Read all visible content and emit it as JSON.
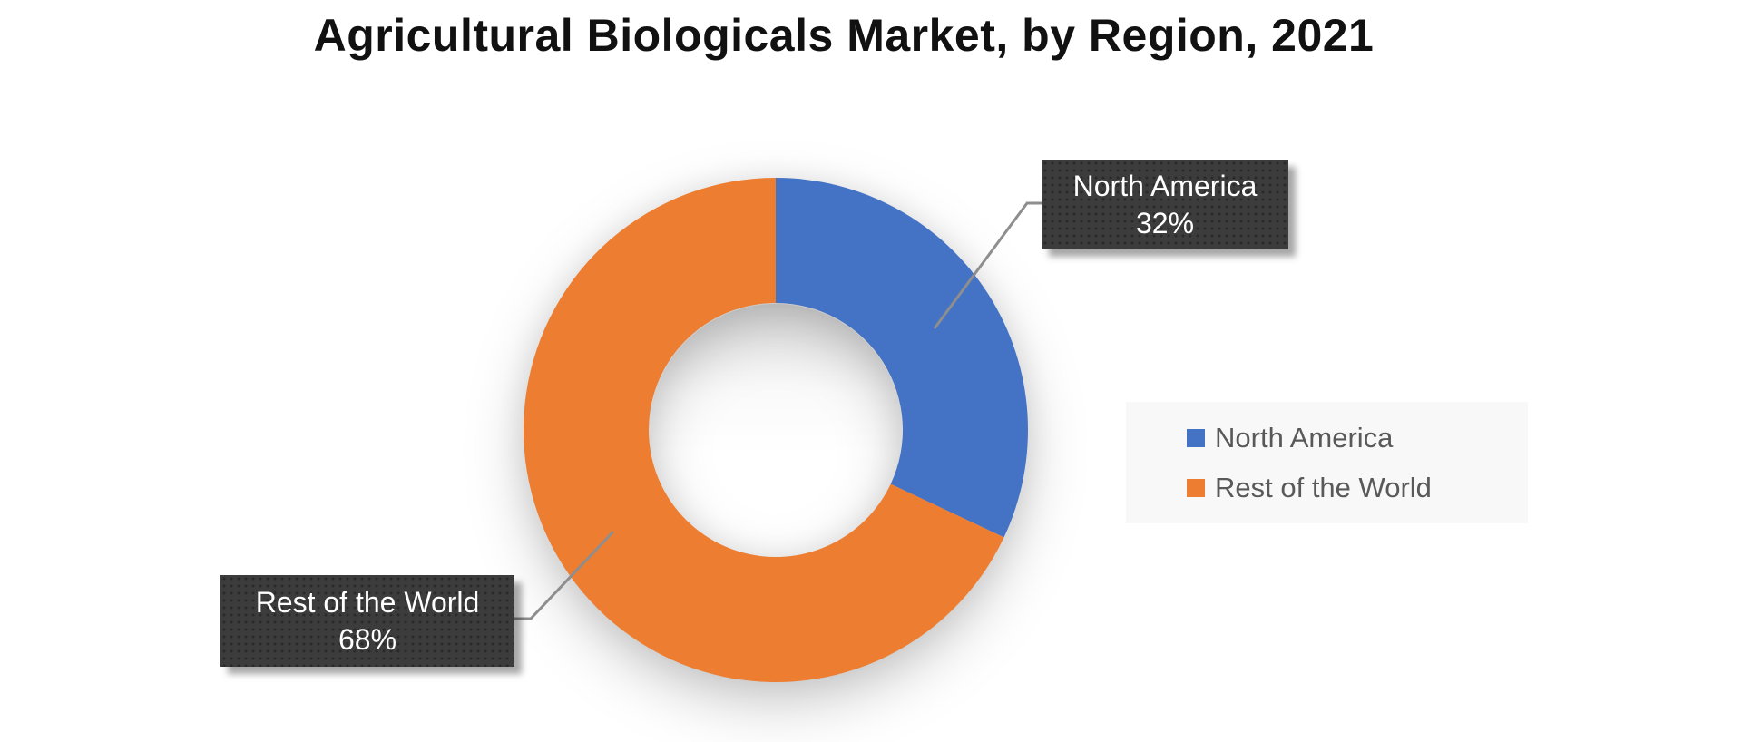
{
  "title": "Agricultural Biologicals Market, by Region, 2021",
  "chart_data": {
    "type": "pie",
    "subtype": "donut",
    "title": "Agricultural Biologicals Market, by Region, 2021",
    "categories": [
      "North America",
      "Rest of the World"
    ],
    "values": [
      32,
      68
    ],
    "unit": "%",
    "colors": [
      "#4472C4",
      "#ED7D31"
    ],
    "start_angle_deg": 0,
    "direction": "clockwise",
    "inner_radius_ratio": 0.5,
    "legend_position": "right",
    "data_labels": [
      "North America 32%",
      "Rest of the World 68%"
    ]
  },
  "callouts": [
    {
      "label": "North America",
      "value": "32%"
    },
    {
      "label": "Rest of the World",
      "value": "68%"
    }
  ],
  "legend": {
    "items": [
      {
        "label": "North America",
        "color": "#4472C4"
      },
      {
        "label": "Rest of the World",
        "color": "#ED7D31"
      }
    ]
  },
  "style": {
    "callout_bg": "#3C3C3C",
    "callout_text": "#FFFFFF",
    "leader_line_color": "#8E8E8E",
    "legend_bg": "#F8F8F8",
    "legend_text_color": "#595959",
    "title_color": "#111111"
  }
}
